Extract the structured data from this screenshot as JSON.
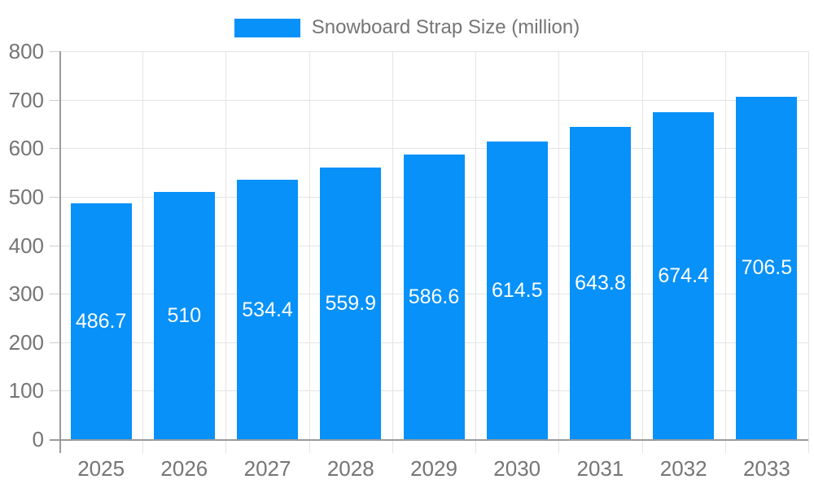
{
  "chart_data": {
    "type": "bar",
    "title": "Snowboard Strap Size (million)",
    "categories": [
      "2025",
      "2026",
      "2027",
      "2028",
      "2029",
      "2030",
      "2031",
      "2032",
      "2033"
    ],
    "values": [
      486.7,
      510,
      534.4,
      559.9,
      586.6,
      614.5,
      643.8,
      674.4,
      706.5
    ],
    "value_labels": [
      "486.7",
      "510",
      "534.4",
      "559.9",
      "586.6",
      "614.5",
      "643.8",
      "674.4",
      "706.5"
    ],
    "xlabel": "",
    "ylabel": "",
    "ylim": [
      0,
      800
    ],
    "yticks": [
      0,
      100,
      200,
      300,
      400,
      500,
      600,
      700,
      800
    ],
    "grid": true,
    "legend_position": "top",
    "colors": {
      "bar": "#0791f9",
      "axis_line": "#9b9b9b",
      "gridline": "#e4e4e4",
      "tick_mark": "#cccccc",
      "tick_text": "#757575",
      "bar_label_text": "#ffffff",
      "background": "#ffffff"
    }
  }
}
